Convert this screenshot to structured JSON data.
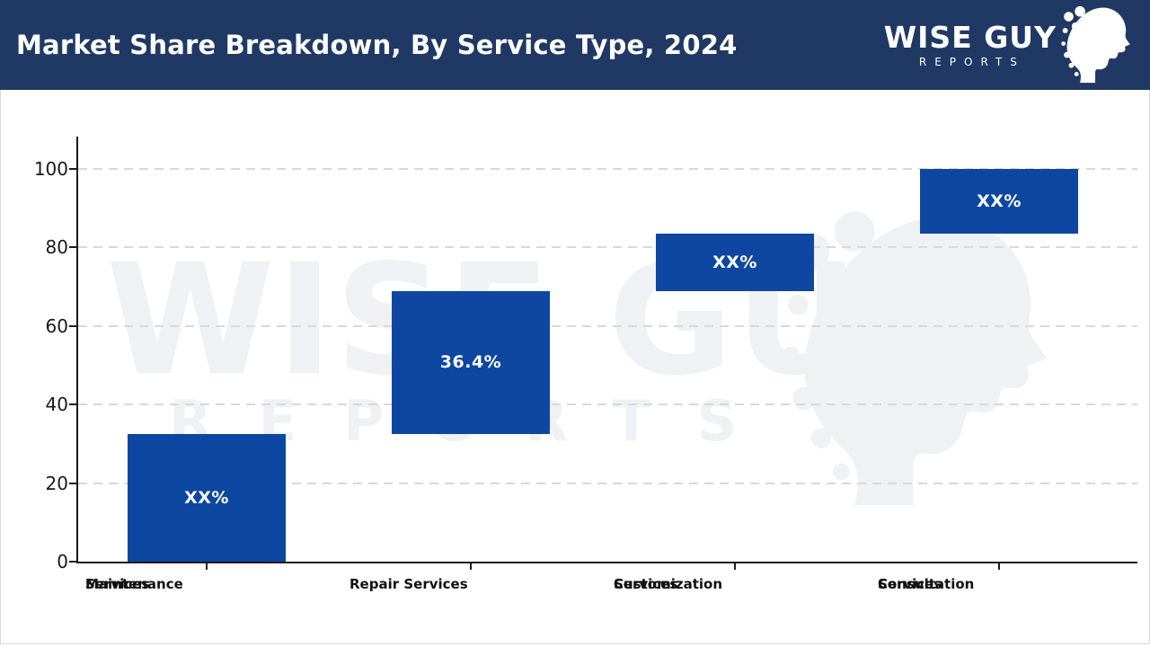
{
  "header": {
    "title": "Market Share Breakdown, By Service Type, 2024",
    "logo": {
      "wordmark": "WISE GUY",
      "reports": "REPORTS"
    }
  },
  "watermark": {
    "wordmark": "WISE GUY",
    "reports": "REPORTS"
  },
  "colors": {
    "header_bg": "#203864",
    "bar": "#0d47a1",
    "axis": "#1a1a1a",
    "gridline": "#d9d9d9",
    "watermark": "#f0f1f4",
    "bar_label": "#ffffff",
    "title_text": "#ffffff"
  },
  "chart_data": {
    "type": "bar",
    "subtype": "waterfall",
    "title": "Market Share Breakdown, By Service Type, 2024",
    "categories": [
      "Maintenance Services",
      "Repair Services",
      "Customization Services",
      "Consultation Services"
    ],
    "category_lines": [
      [
        "Maintenance",
        "Services"
      ],
      [
        "Repair Services"
      ],
      [
        "Customization",
        "Services"
      ],
      [
        "Consultation",
        "Services"
      ]
    ],
    "bars": [
      {
        "category": "Maintenance Services",
        "start": 0,
        "end": 32.5,
        "label": "XX%"
      },
      {
        "category": "Repair Services",
        "start": 32.5,
        "end": 68.9,
        "label": "36.4%"
      },
      {
        "category": "Customization Services",
        "start": 68.9,
        "end": 83.4,
        "label": "XX%"
      },
      {
        "category": "Consultation Services",
        "start": 83.4,
        "end": 100,
        "label": "XX%"
      }
    ],
    "xlabel": "",
    "ylabel": "",
    "ylim": [
      0,
      108
    ],
    "yticks": [
      0,
      20,
      40,
      60,
      80,
      100
    ],
    "grid": "horizontal-dashed",
    "legend": "none",
    "unit": "percent"
  }
}
